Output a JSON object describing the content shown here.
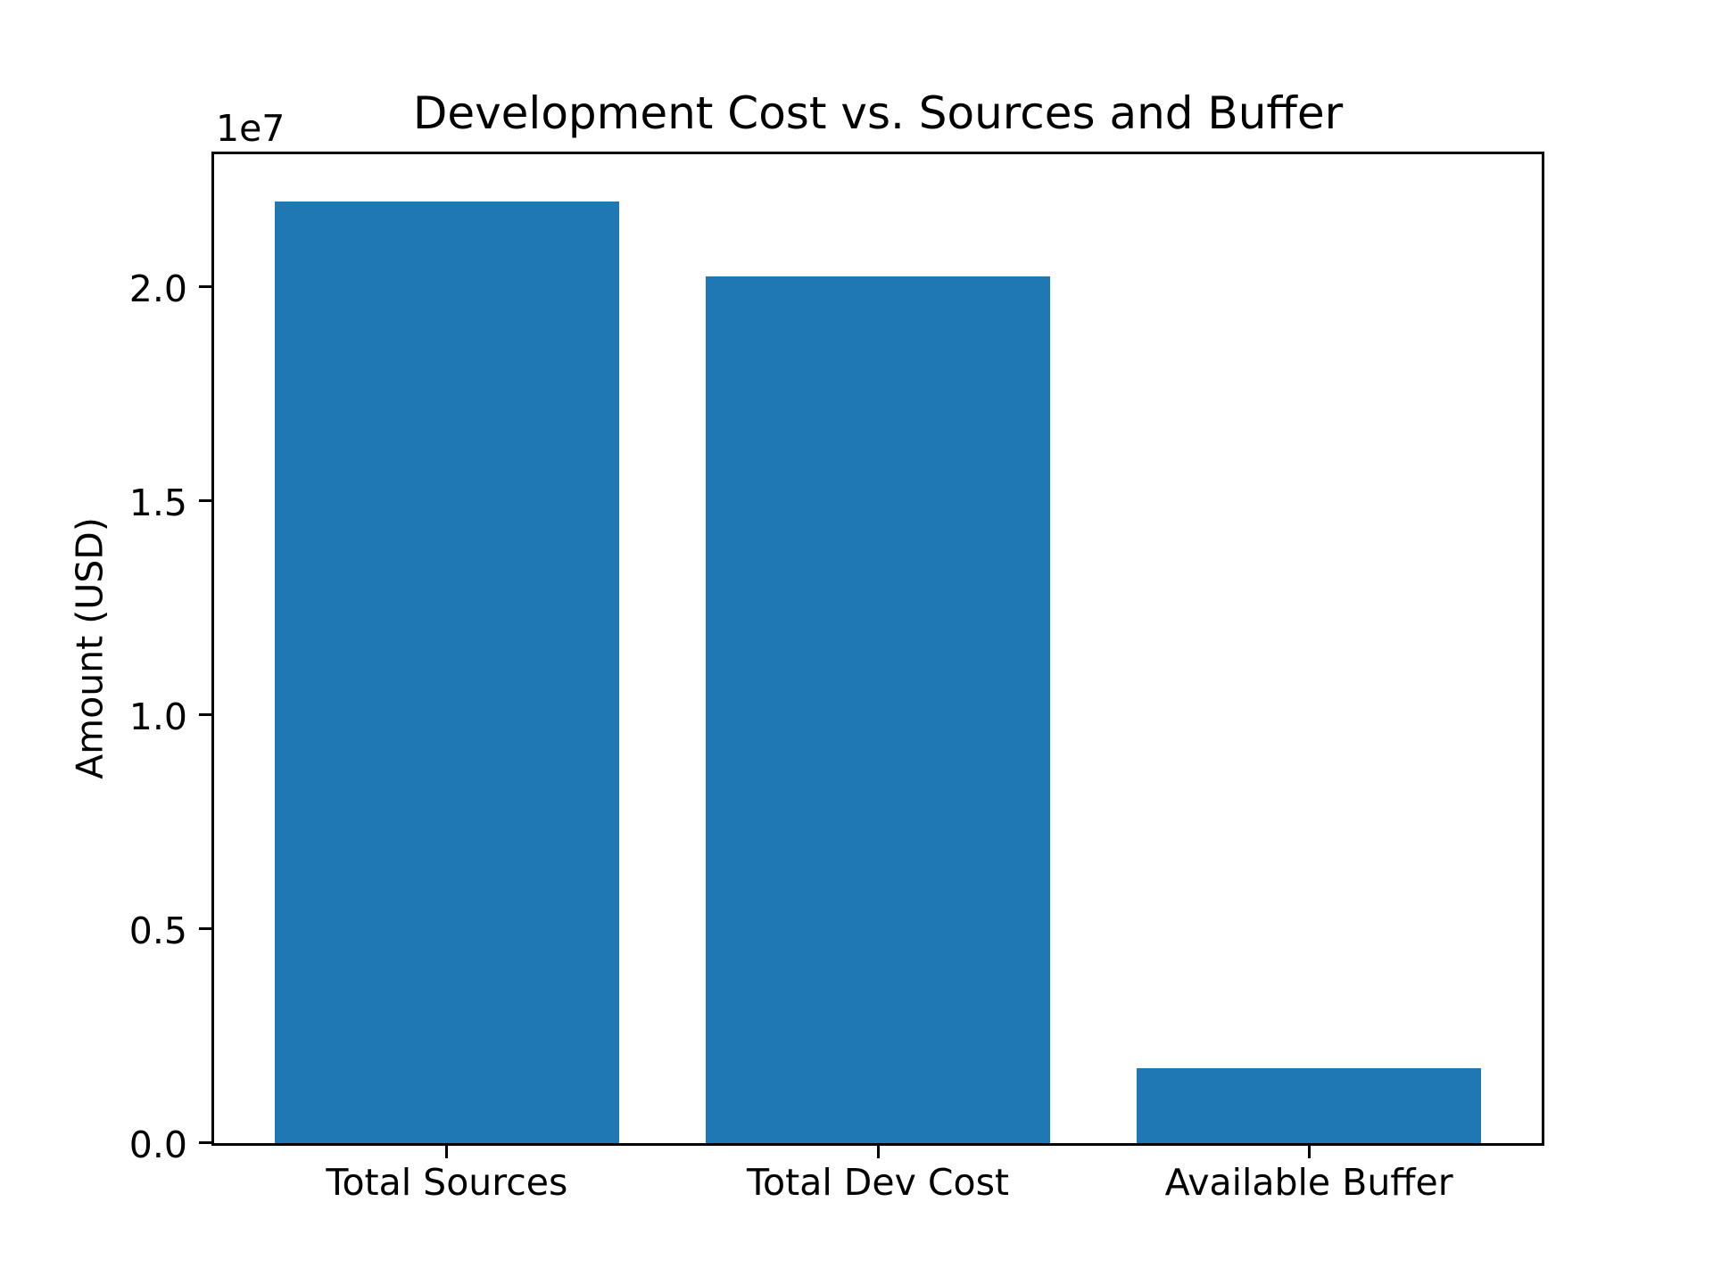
{
  "chart_data": {
    "type": "bar",
    "title": "Development Cost vs. Sources and Buffer",
    "xlabel": "",
    "ylabel": "Amount (USD)",
    "y_offset_label": "1e7",
    "categories": [
      "Total Sources",
      "Total Dev Cost",
      "Available Buffer"
    ],
    "values": [
      22000000,
      20250000,
      1750000
    ],
    "ylim": [
      0,
      23100000
    ],
    "yticks": [
      0,
      5000000,
      10000000,
      15000000,
      20000000
    ],
    "ytick_labels": [
      "0.0",
      "0.5",
      "1.0",
      "1.5",
      "2.0"
    ],
    "bar_width_fraction": 0.8,
    "bar_color": "#1f77b4",
    "axis_color": "#000000",
    "text_color": "#000000",
    "background_color": "#ffffff",
    "grid": false,
    "legend_position": "none"
  }
}
